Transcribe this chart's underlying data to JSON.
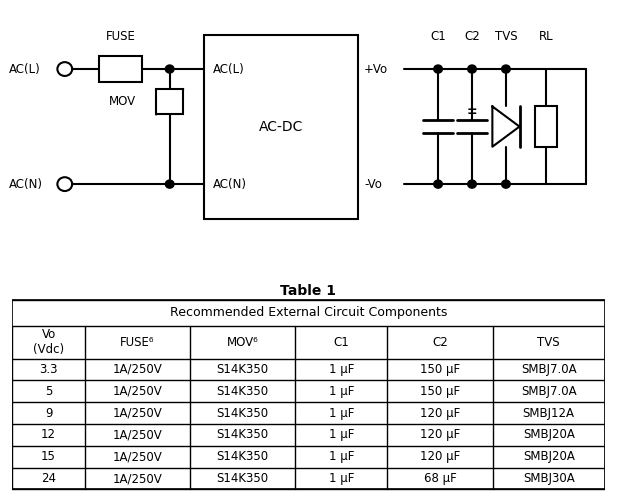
{
  "title": "Table 1",
  "table_header": "Recommended External Circuit Components",
  "col_headers": [
    "Vo\n(Vdc)",
    "FUSE⁶",
    "MOV⁶",
    "C1",
    "C2",
    "TVS"
  ],
  "rows": [
    [
      "3.3",
      "1A/250V",
      "S14K350",
      "1 μF",
      "150 μF",
      "SMBJ7.0A"
    ],
    [
      "5",
      "1A/250V",
      "S14K350",
      "1 μF",
      "150 μF",
      "SMBJ7.0A"
    ],
    [
      "9",
      "1A/250V",
      "S14K350",
      "1 μF",
      "120 μF",
      "SMBJ12A"
    ],
    [
      "12",
      "1A/250V",
      "S14K350",
      "1 μF",
      "120 μF",
      "SMBJ20A"
    ],
    [
      "15",
      "1A/250V",
      "S14K350",
      "1 μF",
      "120 μF",
      "SMBJ20A"
    ],
    [
      "24",
      "1A/250V",
      "S14K350",
      "1 μF",
      "68 μF",
      "SMBJ30A"
    ]
  ],
  "background_color": "#ffffff",
  "line_color": "#000000",
  "text_color": "#000000",
  "circuit_labels": {
    "acl": "AC(L)",
    "acn": "AC(N)",
    "fuse": "FUSE",
    "mov": "MOV",
    "acdc": "AC-DC",
    "acl_in": "AC(L)",
    "acn_in": "AC(N)",
    "vp": "+Vo",
    "vn": "-Vo",
    "c1": "C1",
    "c2": "C2",
    "tvs": "TVS",
    "rl": "RL"
  }
}
